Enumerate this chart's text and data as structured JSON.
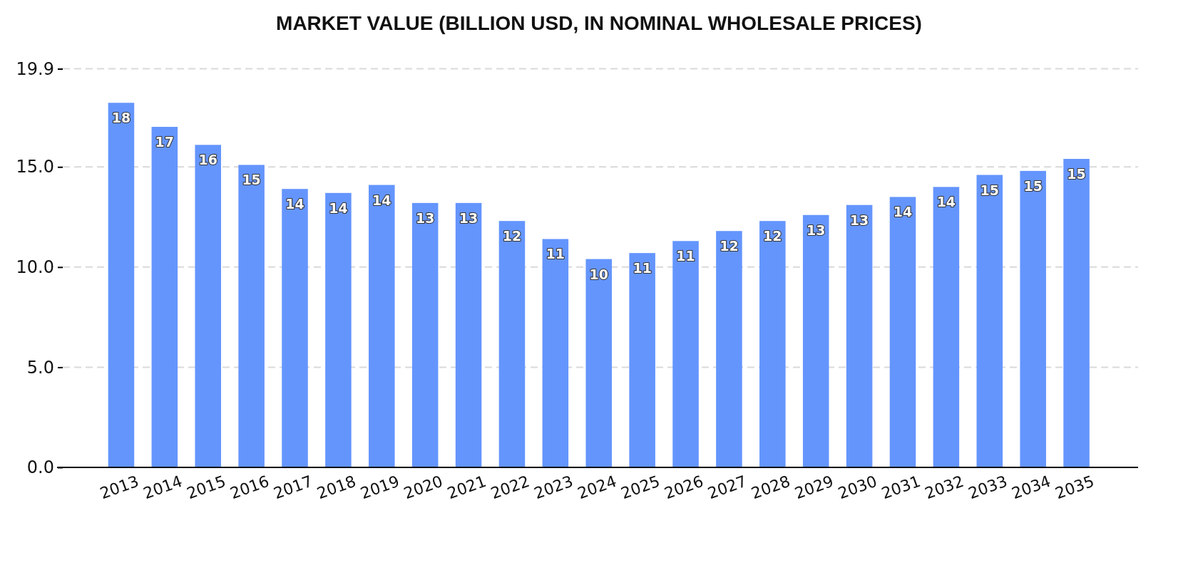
{
  "chart_data": {
    "type": "bar",
    "title": "MARKET VALUE (BILLION USD, IN NOMINAL WHOLESALE PRICES)",
    "categories": [
      "2013",
      "2014",
      "2015",
      "2016",
      "2017",
      "2018",
      "2019",
      "2020",
      "2021",
      "2022",
      "2023",
      "2024",
      "2025",
      "2026",
      "2027",
      "2028",
      "2029",
      "2030",
      "2031",
      "2032",
      "2033",
      "2034",
      "2035"
    ],
    "values": [
      18.2,
      17.0,
      16.1,
      15.1,
      13.9,
      13.7,
      14.1,
      13.2,
      13.2,
      12.3,
      11.4,
      10.4,
      10.7,
      11.3,
      11.8,
      12.3,
      12.6,
      13.1,
      13.5,
      14.0,
      14.6,
      14.8,
      15.4
    ],
    "value_labels": [
      "18",
      "17",
      "16",
      "15",
      "14",
      "14",
      "14",
      "13",
      "13",
      "12",
      "11",
      "10",
      "11",
      "11",
      "12",
      "12",
      "13",
      "13",
      "14",
      "14",
      "15",
      "15",
      "15"
    ],
    "color": "#6495fd",
    "ylim": [
      0,
      19.9
    ],
    "yticks": [
      {
        "value": 0,
        "label": "0.0"
      },
      {
        "value": 5,
        "label": "5.0"
      },
      {
        "value": 10,
        "label": "10.0"
      },
      {
        "value": 15,
        "label": "15.0"
      },
      19.9
    ],
    "grid": "y"
  }
}
